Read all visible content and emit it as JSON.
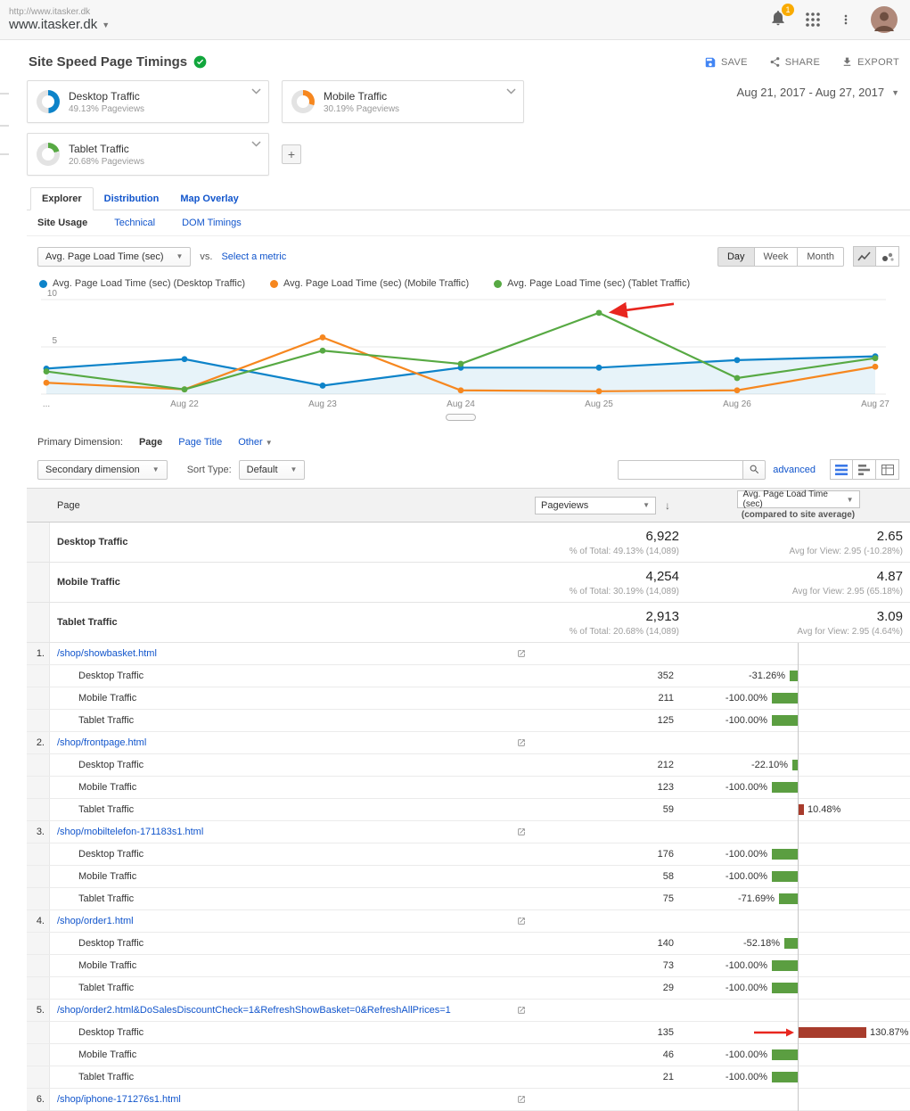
{
  "header": {
    "site_url": "http://www.itasker.dk",
    "account": "www.itasker.dk",
    "notification_count": "1"
  },
  "toolbar": {
    "title": "Site Speed Page Timings",
    "save": "SAVE",
    "share": "SHARE",
    "export": "EXPORT"
  },
  "date_range": "Aug 21, 2017 - Aug 27, 2017",
  "segments": [
    {
      "name": "Desktop Traffic",
      "detail": "49.13% Pageviews",
      "percent": 49.13,
      "color": "#0d83c9"
    },
    {
      "name": "Mobile Traffic",
      "detail": "30.19% Pageviews",
      "percent": 30.19,
      "color": "#f6871f"
    },
    {
      "name": "Tablet Traffic",
      "detail": "20.68% Pageviews",
      "percent": 20.68,
      "color": "#57a943"
    }
  ],
  "tabs": {
    "explorer": "Explorer",
    "distribution": "Distribution",
    "map_overlay": "Map Overlay"
  },
  "subtabs": {
    "site_usage": "Site Usage",
    "technical": "Technical",
    "dom_timings": "DOM Timings"
  },
  "metric_bar": {
    "metric": "Avg. Page Load Time (sec)",
    "vs": "vs.",
    "select_metric": "Select a metric",
    "day": "Day",
    "week": "Week",
    "month": "Month"
  },
  "chart_data": {
    "type": "line",
    "x": [
      "...",
      "Aug 22",
      "Aug 23",
      "Aug 24",
      "Aug 25",
      "Aug 26",
      "Aug 27"
    ],
    "ylim": [
      0,
      10
    ],
    "yticks": [
      5,
      10
    ],
    "grid": true,
    "legend_position": "top",
    "series": [
      {
        "name": "Avg. Page Load Time (sec) (Desktop Traffic)",
        "color": "#0d83c9",
        "area_fill": true,
        "values": [
          2.7,
          3.7,
          0.9,
          2.8,
          2.8,
          3.6,
          4.0
        ]
      },
      {
        "name": "Avg. Page Load Time (sec) (Mobile Traffic)",
        "color": "#f6871f",
        "area_fill": false,
        "values": [
          1.2,
          0.5,
          6.0,
          0.4,
          0.3,
          0.4,
          2.9
        ]
      },
      {
        "name": "Avg. Page Load Time (sec) (Tablet Traffic)",
        "color": "#57a943",
        "area_fill": false,
        "values": [
          2.4,
          0.5,
          4.6,
          3.2,
          8.6,
          1.7,
          3.8
        ]
      }
    ],
    "annotation": "red arrow pointing at Tablet Traffic peak on Aug 25"
  },
  "primary_dimension": {
    "label": "Primary Dimension:",
    "selected": "Page",
    "page_title": "Page Title",
    "other": "Other"
  },
  "controls": {
    "secondary_dimension": "Secondary dimension",
    "sort_type_label": "Sort Type:",
    "sort_type_value": "Default",
    "advanced": "advanced",
    "search_value": ""
  },
  "table": {
    "columns": {
      "page": "Page",
      "pageviews": "Pageviews",
      "load_time": "Avg. Page Load Time (sec)",
      "load_time_note": "(compared to site average)"
    },
    "summary_rows": [
      {
        "name": "Desktop Traffic",
        "pageviews": "6,922",
        "pageviews_note": "% of Total: 49.13% (14,089)",
        "load_time": "2.65",
        "load_note": "Avg for View: 2.95 (-10.28%)"
      },
      {
        "name": "Mobile Traffic",
        "pageviews": "4,254",
        "pageviews_note": "% of Total: 30.19% (14,089)",
        "load_time": "4.87",
        "load_note": "Avg for View: 2.95 (65.18%)"
      },
      {
        "name": "Tablet Traffic",
        "pageviews": "2,913",
        "pageviews_note": "% of Total: 20.68% (14,089)",
        "load_time": "3.09",
        "load_note": "Avg for View: 2.95 (4.64%)"
      }
    ],
    "groups": [
      {
        "num": "1.",
        "page": "/shop/showbasket.html",
        "rows": [
          {
            "segment": "Desktop Traffic",
            "pageviews": "352",
            "pct": -31.26,
            "pct_label": "-31.26%"
          },
          {
            "segment": "Mobile Traffic",
            "pageviews": "211",
            "pct": -100,
            "pct_label": "-100.00%"
          },
          {
            "segment": "Tablet Traffic",
            "pageviews": "125",
            "pct": -100,
            "pct_label": "-100.00%"
          }
        ]
      },
      {
        "num": "2.",
        "page": "/shop/frontpage.html",
        "rows": [
          {
            "segment": "Desktop Traffic",
            "pageviews": "212",
            "pct": -22.1,
            "pct_label": "-22.10%"
          },
          {
            "segment": "Mobile Traffic",
            "pageviews": "123",
            "pct": -100,
            "pct_label": "-100.00%"
          },
          {
            "segment": "Tablet Traffic",
            "pageviews": "59",
            "pct": 10.48,
            "pct_label": "10.48%"
          }
        ]
      },
      {
        "num": "3.",
        "page": "/shop/mobiltelefon-171183s1.html",
        "rows": [
          {
            "segment": "Desktop Traffic",
            "pageviews": "176",
            "pct": -100,
            "pct_label": "-100.00%"
          },
          {
            "segment": "Mobile Traffic",
            "pageviews": "58",
            "pct": -100,
            "pct_label": "-100.00%"
          },
          {
            "segment": "Tablet Traffic",
            "pageviews": "75",
            "pct": -71.69,
            "pct_label": "-71.69%"
          }
        ]
      },
      {
        "num": "4.",
        "page": "/shop/order1.html",
        "rows": [
          {
            "segment": "Desktop Traffic",
            "pageviews": "140",
            "pct": -52.18,
            "pct_label": "-52.18%"
          },
          {
            "segment": "Mobile Traffic",
            "pageviews": "73",
            "pct": -100,
            "pct_label": "-100.00%"
          },
          {
            "segment": "Tablet Traffic",
            "pageviews": "29",
            "pct": -100,
            "pct_label": "-100.00%"
          }
        ]
      },
      {
        "num": "5.",
        "page": "/shop/order2.html&DoSalesDiscountCheck=1&RefreshShowBasket=0&RefreshAllPrices=1",
        "rows": [
          {
            "segment": "Desktop Traffic",
            "pageviews": "135",
            "pct": 130.87,
            "pct_label": "130.87%",
            "arrow": true
          },
          {
            "segment": "Mobile Traffic",
            "pageviews": "46",
            "pct": -100,
            "pct_label": "-100.00%"
          },
          {
            "segment": "Tablet Traffic",
            "pageviews": "21",
            "pct": -100,
            "pct_label": "-100.00%"
          }
        ]
      },
      {
        "num": "6.",
        "page": "/shop/iphone-171276s1.html",
        "rows": []
      }
    ]
  }
}
